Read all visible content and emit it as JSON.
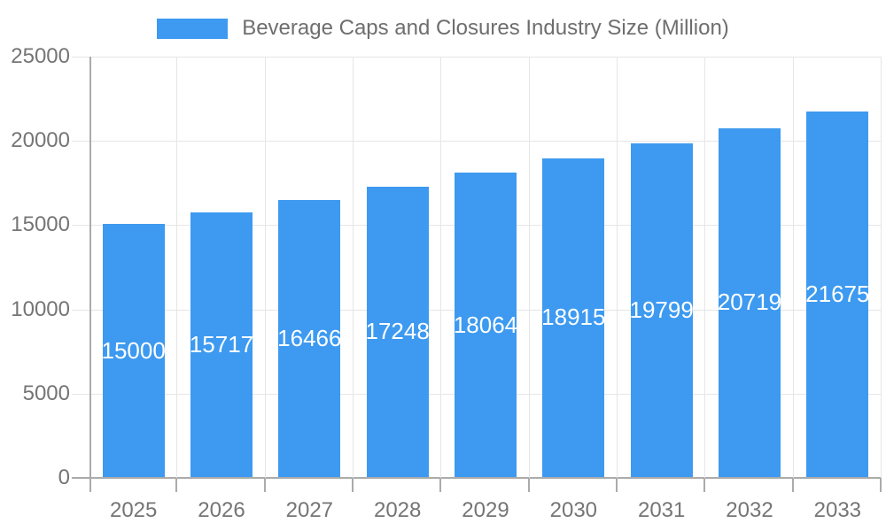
{
  "chart_data": {
    "type": "bar",
    "title": "Beverage Caps and Closures Industry Size (Million)",
    "categories": [
      "2025",
      "2026",
      "2027",
      "2028",
      "2029",
      "2030",
      "2031",
      "2032",
      "2033"
    ],
    "values": [
      15000,
      15717,
      16466,
      17248,
      18064,
      18915,
      19799,
      20719,
      21675
    ],
    "series": [
      {
        "name": "Beverage Caps and Closures Industry Size (Million)",
        "values": [
          15000,
          15717,
          16466,
          17248,
          18064,
          18915,
          19799,
          20719,
          21675
        ]
      }
    ],
    "xlabel": "",
    "ylabel": "",
    "ylim": [
      0,
      25000
    ],
    "yticks": [
      0,
      5000,
      10000,
      15000,
      20000,
      25000
    ],
    "grid": true,
    "legend_position": "top",
    "bar_value_labels_visible": true,
    "colors": {
      "bar": "#3D9AF0",
      "bar_label": "#FFFFFF",
      "axis_text": "#757575",
      "legend_text": "#6E6E6E",
      "gridline": "#E6E6E6",
      "axis_line": "#ABABAB",
      "background": "#FFFFFF"
    }
  }
}
